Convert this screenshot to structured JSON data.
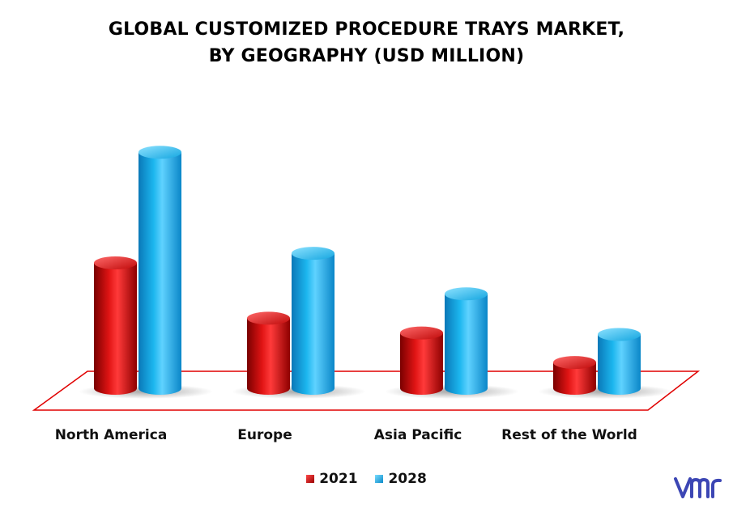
{
  "chart_data": {
    "type": "bar",
    "title_lines": [
      "GLOBAL CUSTOMIZED PROCEDURE TRAYS MARKET,",
      "BY GEOGRAPHY (USD MILLION)"
    ],
    "categories": [
      "North America",
      "Europe",
      "Asia Pacific",
      "Rest of the World"
    ],
    "series": [
      {
        "name": "2021",
        "values": [
          170,
          95,
          75,
          35
        ],
        "color": "#d81010"
      },
      {
        "name": "2028",
        "values": [
          320,
          183,
          128,
          73
        ],
        "color": "#18b4ec"
      }
    ],
    "xlabel": "",
    "ylabel": "",
    "ylim": [
      0,
      340
    ],
    "grid": false,
    "legend_position": "bottom",
    "floor_color": "#e00000"
  },
  "brand": {
    "logo_icon": "vmr-logo-icon",
    "logo_color": "#3c46b4"
  }
}
